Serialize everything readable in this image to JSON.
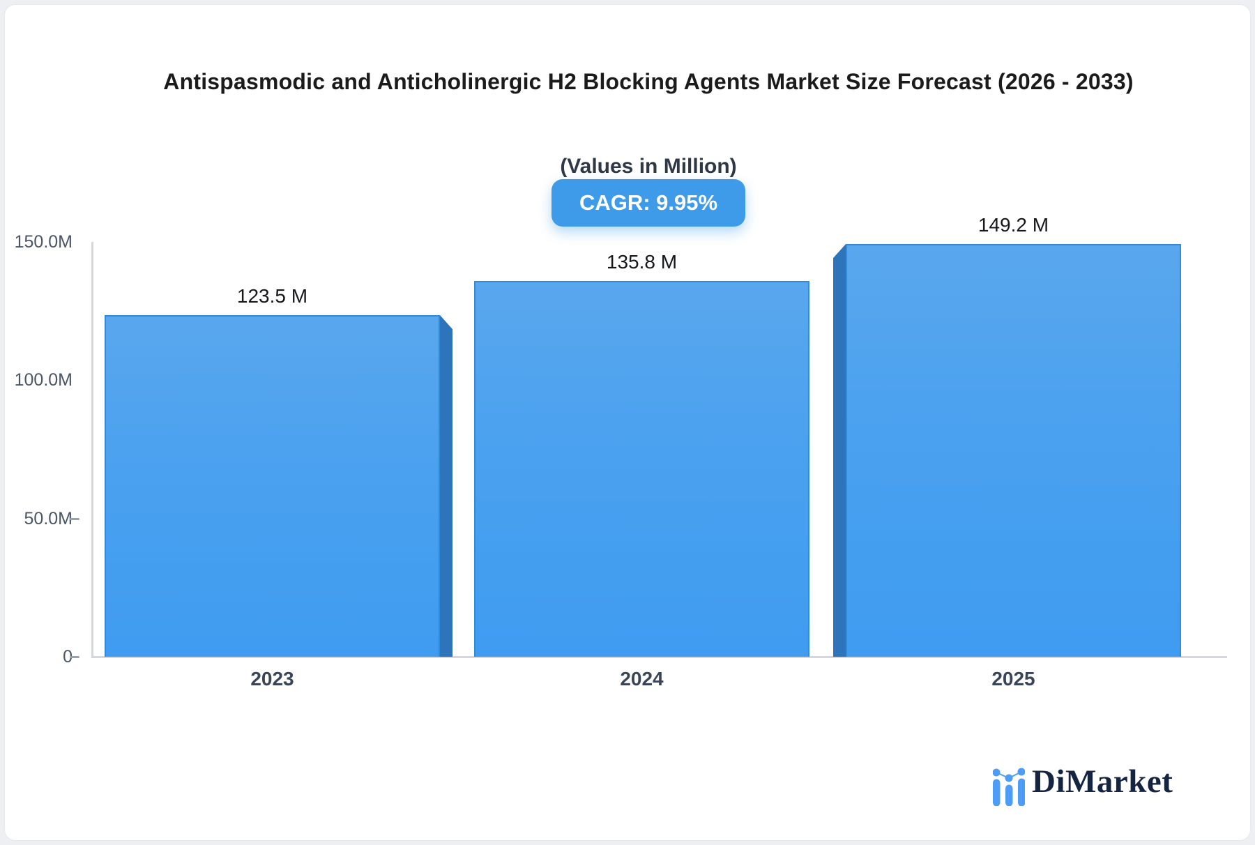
{
  "page": {
    "background_color": "#edeff2",
    "card_color": "#ffffff"
  },
  "header": {
    "title": "Antispasmodic and Anticholinergic H2 Blocking Agents Market Size Forecast (2026 - 2033)",
    "subtitle": "(Values in Million)",
    "cagr_badge": "CAGR: 9.95%",
    "badge_color": "#3d9be9"
  },
  "chart_data": {
    "type": "bar",
    "title": "Antispasmodic and Anticholinergic H2 Blocking Agents Market Size Forecast (2026 - 2033)",
    "subtitle": "(Values in Million)",
    "annotation": "CAGR: 9.95%",
    "categories": [
      "2023",
      "2024",
      "2025"
    ],
    "values": [
      123.5,
      135.8,
      149.2
    ],
    "value_labels": [
      "123.5 M",
      "135.8 M",
      "149.2 M"
    ],
    "unit": "Million",
    "xlabel": "",
    "ylabel": "",
    "ylim": [
      0,
      150
    ],
    "yticks": [
      {
        "value": 0,
        "label": "0",
        "dash": true
      },
      {
        "value": 50,
        "label": "50.0M",
        "dash": true
      },
      {
        "value": 100,
        "label": "100.0M",
        "dash": false
      },
      {
        "value": 150,
        "label": "150.0M",
        "dash": false
      }
    ],
    "grid": false,
    "legend": false,
    "style": "pseudo-3d bars, side faces toward center",
    "bar_color_top": "#59a7ee",
    "bar_color_bottom": "#3f9cf0",
    "bar_border_color": "#338ad9",
    "bar_side_color": "#2e74ba"
  },
  "footer": {
    "brand": "DiMarket",
    "brand_icon": "bar-chart-logo-icon",
    "brand_text_color": "#152440",
    "brand_icon_color": "#4d9cf6"
  }
}
